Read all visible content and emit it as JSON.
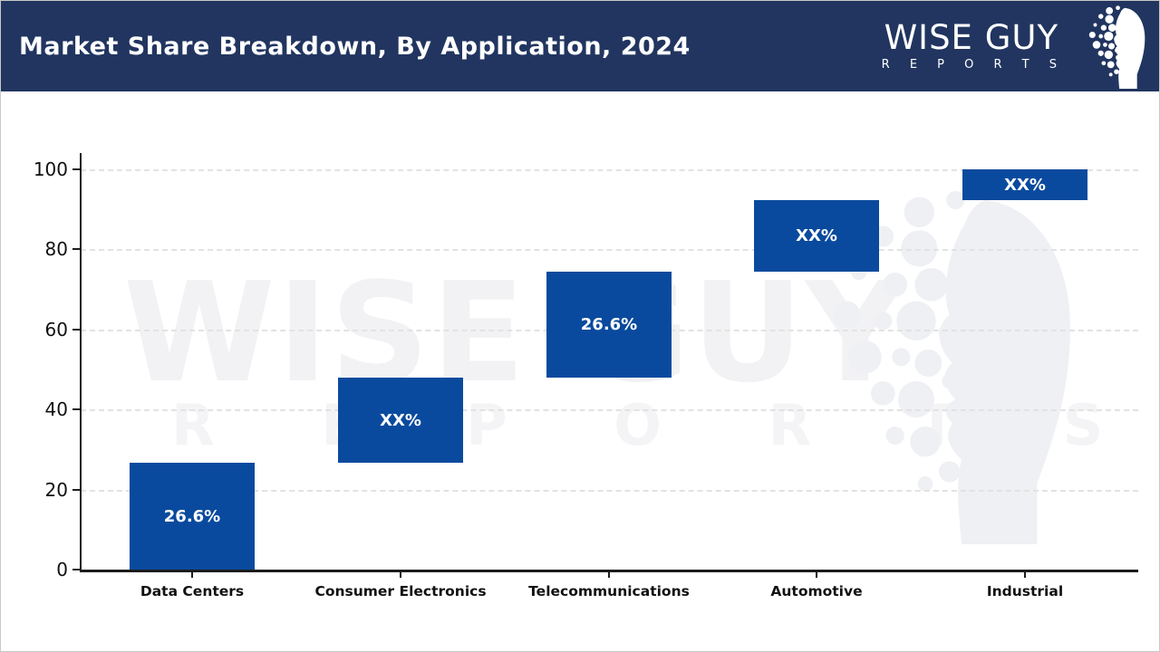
{
  "header": {
    "title": "Market Share Breakdown, By Application, 2024",
    "logo": {
      "line1": "WISE GUY",
      "line2": "REPORTS"
    },
    "background_color": "#213560",
    "text_color": "#ffffff"
  },
  "watermark": {
    "line1": "WISE GUY",
    "line2": "REPORTS",
    "color": "#f2f2f4"
  },
  "chart_data": {
    "type": "bar",
    "subtype": "floating-segment-waterfall",
    "title": "Market Share Breakdown, By Application, 2024",
    "categories": [
      "Data Centers",
      "Consumer Electronics",
      "Telecommunications",
      "Automotive",
      "Industrial"
    ],
    "segments": [
      {
        "category": "Data Centers",
        "start": 0,
        "end": 26.6,
        "label": "26.6%"
      },
      {
        "category": "Consumer Electronics",
        "start": 26.6,
        "end": 47.9,
        "label": "XX%"
      },
      {
        "category": "Telecommunications",
        "start": 47.9,
        "end": 74.5,
        "label": "26.6%"
      },
      {
        "category": "Automotive",
        "start": 74.5,
        "end": 92.3,
        "label": "XX%"
      },
      {
        "category": "Industrial",
        "start": 92.3,
        "end": 100,
        "label": "XX%"
      }
    ],
    "xlabel": "",
    "ylabel": "",
    "yticks": [
      0,
      20,
      40,
      60,
      80,
      100
    ],
    "ylim": [
      0,
      104
    ],
    "grid": "horizontal-dashed",
    "legend": "none",
    "bar_color": "#0a4a9e",
    "bar_label_color": "#ffffff",
    "axis_color": "#1c1c1c",
    "gridline_color": "#e2e2e2"
  }
}
